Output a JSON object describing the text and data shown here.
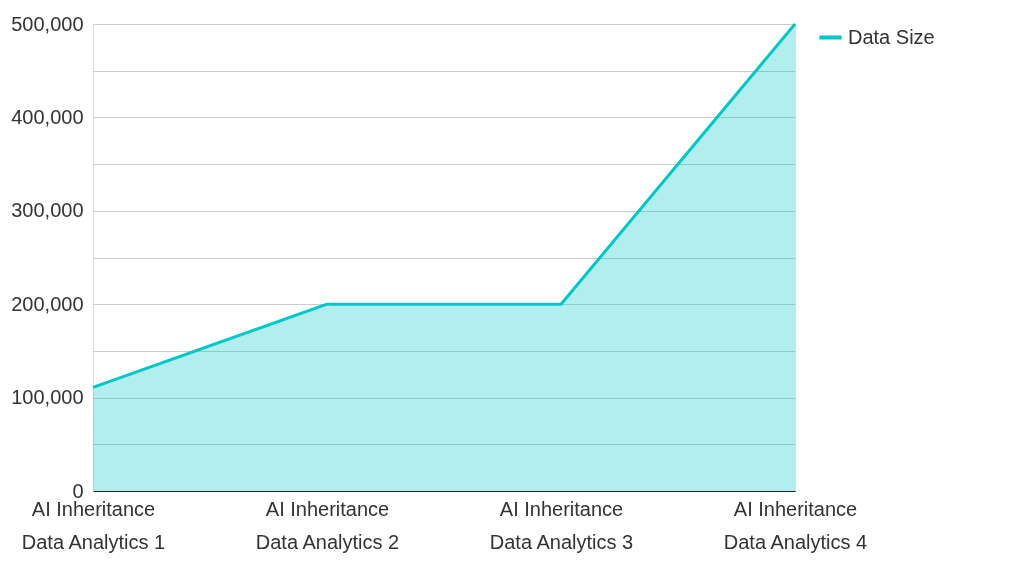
{
  "chart_data": {
    "type": "area",
    "categories": [
      "AI Inheritance\nData Analytics 1",
      "AI Inheritance\nData Analytics 2",
      "AI Inheritance\nData Analytics 3",
      "AI Inheritance\nData Analytics 4"
    ],
    "series": [
      {
        "name": "Data Size",
        "color": "#00c8c8",
        "values": [
          111000,
          200000,
          200000,
          500000
        ]
      }
    ],
    "ylim": [
      0,
      500000
    ],
    "yticks": [
      0,
      {
        "value": 50000,
        "label": null
      },
      {
        "value": 100000,
        "label": "100,000"
      },
      {
        "value": 150000,
        "label": null
      },
      {
        "value": 200000,
        "label": "200,000"
      },
      {
        "value": 250000,
        "label": null
      },
      {
        "value": 300000,
        "label": "300,000"
      },
      {
        "value": 350000,
        "label": null
      },
      {
        "value": 400000,
        "label": "400,000"
      },
      {
        "value": 450000,
        "label": null
      },
      {
        "value": 500000,
        "label": "500,000"
      }
    ],
    "grid": "y",
    "legend": "top right"
  }
}
